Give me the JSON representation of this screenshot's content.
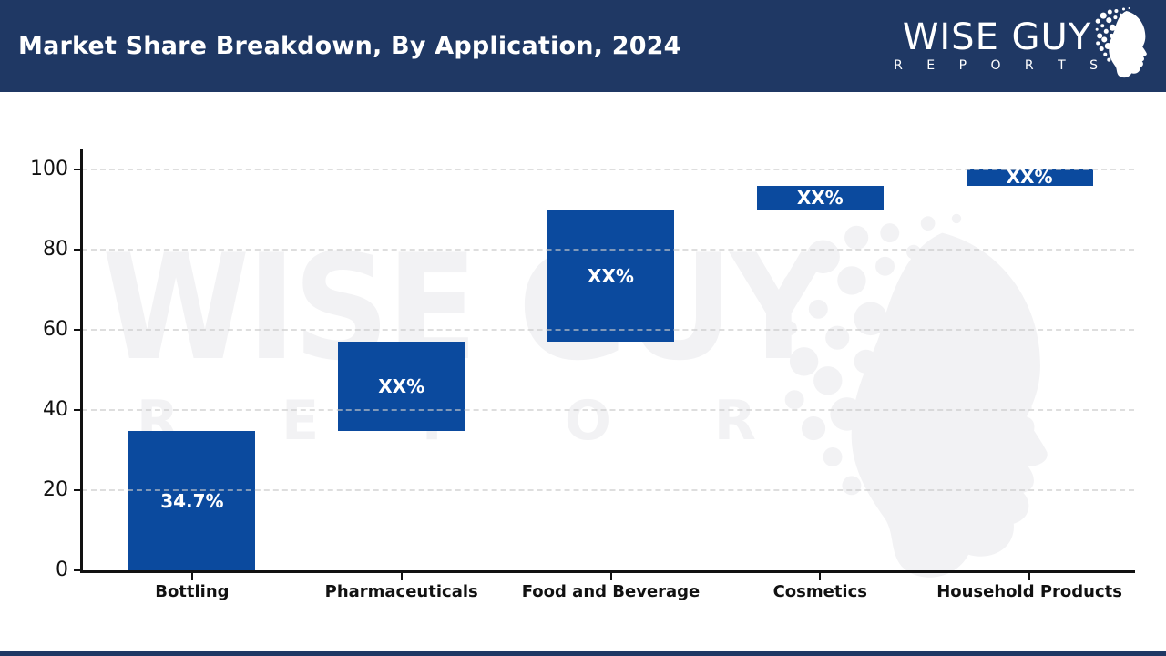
{
  "header": {
    "title": "Market Share Breakdown, By Application, 2024",
    "logo": {
      "line1": "WISE GUY",
      "line2": "R E P O R T S"
    }
  },
  "watermark": {
    "line1": "WISE GUY",
    "line2": "R E P O R T S"
  },
  "colors": {
    "header_bg": "#1f3864",
    "footer_bg": "#1f3864",
    "bar": "#0b4a9e",
    "bar_label_text": "#ffffff",
    "grid": "#c9c9c9",
    "axis": "#111111",
    "watermark": "#f2f2f4"
  },
  "chart_data": {
    "type": "bar",
    "subtype": "floating-waterfall",
    "title": "Market Share Breakdown, By Application, 2024",
    "categories": [
      "Bottling",
      "Pharmaceuticals",
      "Food and Beverage",
      "Cosmetics",
      "Household Products"
    ],
    "segments": [
      {
        "category": "Bottling",
        "start": 0,
        "end": 34.7,
        "label": "34.7%"
      },
      {
        "category": "Pharmaceuticals",
        "start": 34.7,
        "end": 57.0,
        "label": "XX%"
      },
      {
        "category": "Food and Beverage",
        "start": 57.0,
        "end": 89.8,
        "label": "XX%"
      },
      {
        "category": "Cosmetics",
        "start": 89.8,
        "end": 95.9,
        "label": "XX%"
      },
      {
        "category": "Household Products",
        "start": 95.9,
        "end": 100.3,
        "label": "XX%"
      }
    ],
    "yticks": [
      0,
      20,
      40,
      60,
      80,
      100
    ],
    "ylim": [
      0,
      105
    ],
    "xlabel": "",
    "ylabel": "",
    "grid": "horizontal-dashed",
    "legend": "none"
  }
}
